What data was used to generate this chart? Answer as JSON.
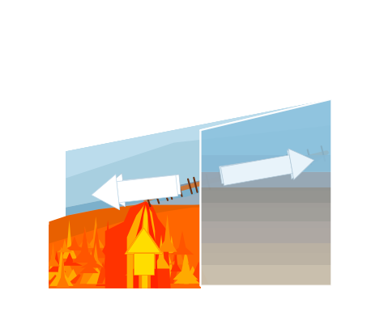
{
  "figsize": [
    4.74,
    4.02
  ],
  "dpi": 100,
  "bg_color": "#ffffff",
  "water_top_light": "#cce8f5",
  "water_top_mid": "#a8d4eb",
  "water_body_left": "#7bbcd8",
  "water_body_right": "#8ec8e0",
  "water_side_right": "#a0d0e8",
  "seafloor_light": "#c8d0d8",
  "seafloor_mid": "#aab8c4",
  "seafloor_dark": "#8a9aaa",
  "earth_top1": "#6a6055",
  "earth_top2": "#857060",
  "earth_layer1": "#b09070",
  "earth_layer2": "#c8a880",
  "earth_layer3": "#d4b890",
  "earth_layer4": "#c0a070",
  "earth_layer5": "#a88060",
  "earth_layer6": "#907060",
  "earth_layer7": "#785040",
  "earth_side1": "#a09080",
  "earth_side2": "#b8a090",
  "earth_side3": "#c8b0a0",
  "earth_side4": "#d8c0a8",
  "earth_side5": "#c0a888",
  "earth_side6": "#a89070",
  "earth_side7": "#907858",
  "lava_red": "#cc2200",
  "lava_orange_dark": "#e84800",
  "lava_orange": "#ff6600",
  "lava_orange_light": "#ff8c00",
  "lava_yellow": "#ffcc00",
  "lava_flame1": "#ff4400",
  "lava_flame2": "#ff7700",
  "lava_flame3": "#ffaa00",
  "ridge_brown": "#c8783c",
  "ridge_dark": "#8B4513",
  "glass_color": "#d0e8f5",
  "glass_alpha": 0.4,
  "arrow_white": "#ffffff",
  "arrow_white2": "#e8eef5"
}
